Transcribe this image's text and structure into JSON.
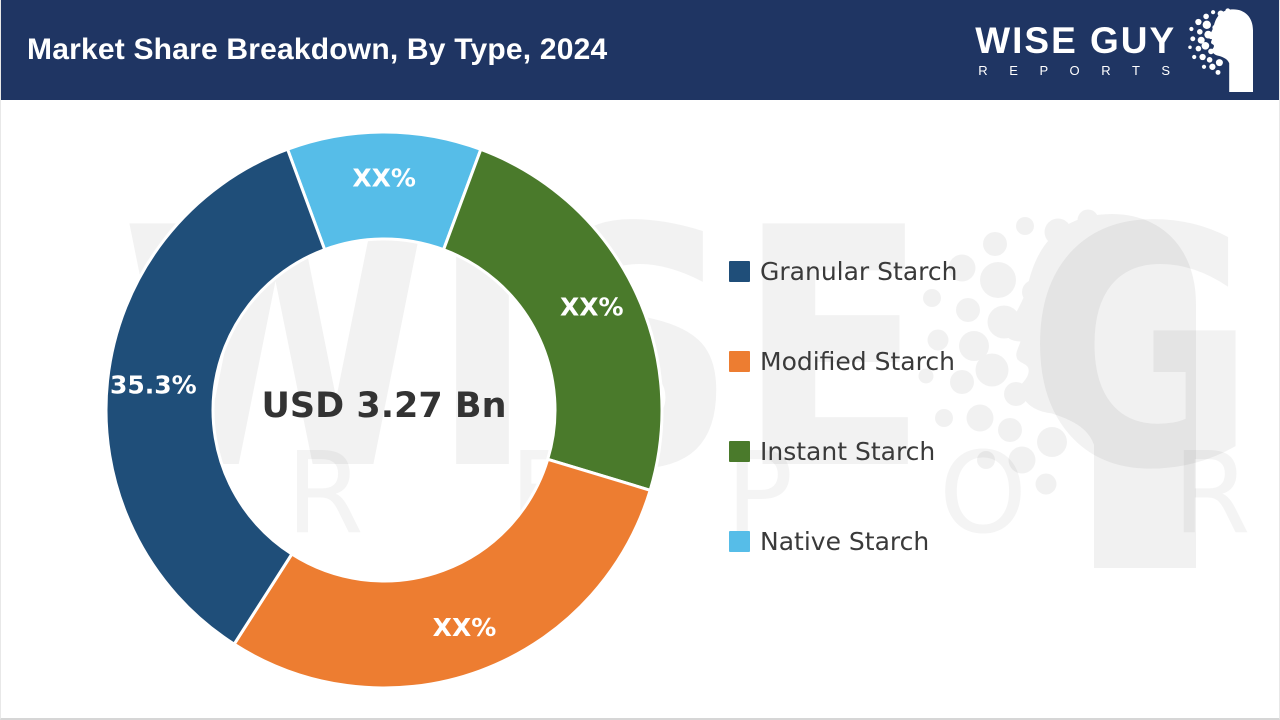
{
  "header": {
    "title": "Market Share Breakdown, By Type, 2024",
    "logo": {
      "line1": "WISE GUY",
      "line2": "R E P O R T S"
    }
  },
  "watermark": {
    "line1": "WISE GUY",
    "line2": "R E P O R T S"
  },
  "colors": {
    "header_bg": "#1f3563",
    "granular_starch": "#1F4E79",
    "modified_starch": "#ED7D31",
    "instant_starch": "#4A7A2B",
    "native_starch": "#56BDE8",
    "center_text": "#333333",
    "segment_label_text": "#ffffff"
  },
  "legend": [
    {
      "label": "Granular Starch",
      "color": "#1F4E79"
    },
    {
      "label": "Modified Starch",
      "color": "#ED7D31"
    },
    {
      "label": "Instant Starch",
      "color": "#4A7A2B"
    },
    {
      "label": "Native Starch",
      "color": "#56BDE8"
    }
  ],
  "chart_data": {
    "type": "pie",
    "subtype": "donut",
    "title": "Market Share Breakdown, By Type, 2024",
    "center_label": "USD 3.27 Bn",
    "start_angle_deg": -20.3,
    "direction": "clockwise",
    "legend_position": "right",
    "segments": [
      {
        "name": "Native Starch",
        "display_label": "XX%",
        "value_pct": 11.3,
        "color": "#56BDE8"
      },
      {
        "name": "Instant Starch",
        "display_label": "XX%",
        "value_pct": 24.0,
        "color": "#4A7A2B"
      },
      {
        "name": "Modified Starch",
        "display_label": "XX%",
        "value_pct": 29.4,
        "color": "#ED7D31"
      },
      {
        "name": "Granular Starch",
        "display_label": "35.3%",
        "value_pct": 35.3,
        "color": "#1F4E79"
      }
    ]
  }
}
